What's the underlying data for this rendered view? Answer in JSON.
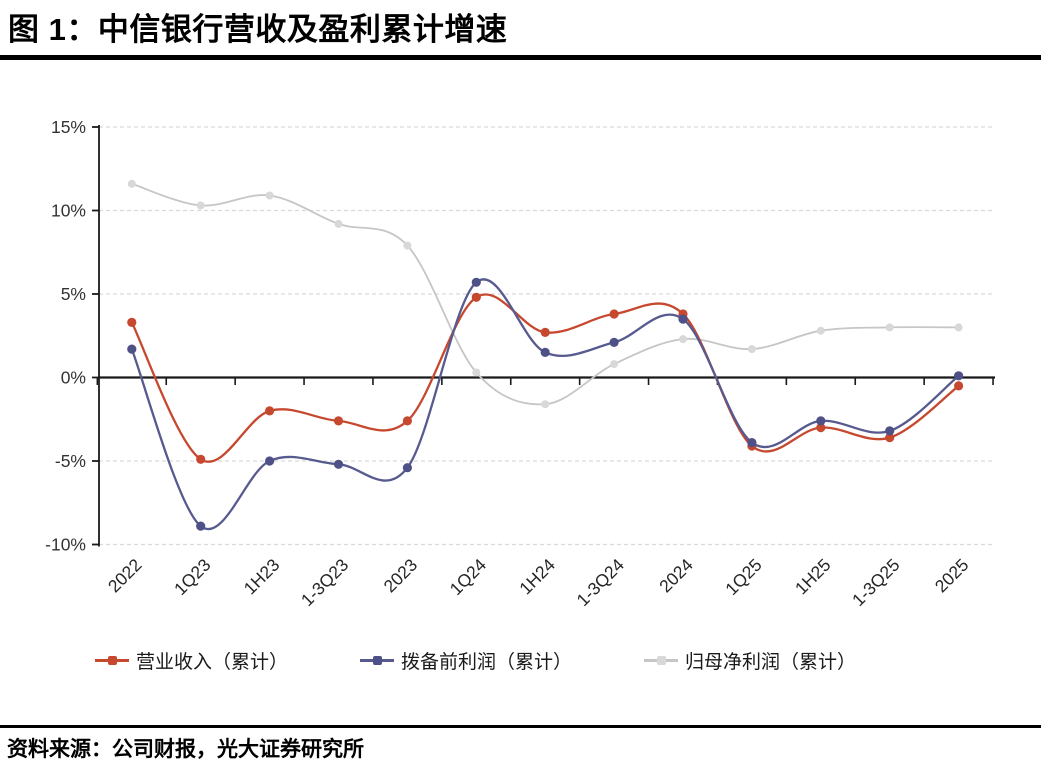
{
  "title": "图 1：中信银行营收及盈利累计增速",
  "source": "资料来源：公司财报，光大证券研究所",
  "colors": {
    "revenue": "#C6492F",
    "ppop": "#575A8E",
    "net_profit": "#C6C6C6",
    "gridline": "#D9D9D9",
    "axis": "#1a1a1a",
    "tick_text": "#333333"
  },
  "chart_data": {
    "type": "line",
    "line_style": "smooth",
    "grid": "horizontal-dashed",
    "legend_position": "bottom",
    "categories": [
      "2022",
      "1Q23",
      "1H23",
      "1-3Q23",
      "2023",
      "1Q24",
      "1H24",
      "1-3Q24",
      "2024",
      "1Q25",
      "1H25",
      "1-3Q25",
      "2025"
    ],
    "series": [
      {
        "name": "营业收入（累计）",
        "color": "#C6492F",
        "marker_color": "#C6492F",
        "values": [
          3.3,
          -4.9,
          -2.0,
          -2.6,
          -2.6,
          4.8,
          2.7,
          3.8,
          3.8,
          -4.1,
          -3.0,
          -3.6,
          -0.5
        ]
      },
      {
        "name": "拨备前利润（累计）",
        "color": "#575A8E",
        "marker_color": "#4E5187",
        "values": [
          1.7,
          -8.9,
          -5.0,
          -5.2,
          -5.4,
          5.7,
          1.5,
          2.1,
          3.5,
          -3.9,
          -2.6,
          -3.2,
          0.1
        ]
      },
      {
        "name": "归母净利润（累计）",
        "color": "#C6C6C6",
        "marker_color": "#D8D8D8",
        "values": [
          11.6,
          10.3,
          10.9,
          9.2,
          7.9,
          0.3,
          -1.6,
          0.8,
          2.3,
          1.7,
          2.8,
          3.0,
          3.0
        ]
      }
    ],
    "ytick_labels": [
      "15%",
      "10%",
      "5%",
      "0%",
      "-5%",
      "-10%"
    ],
    "ytick_values": [
      15,
      10,
      5,
      0,
      -5,
      -10
    ],
    "ylim": [
      -10,
      15
    ],
    "ylabel": "",
    "xlabel": ""
  }
}
